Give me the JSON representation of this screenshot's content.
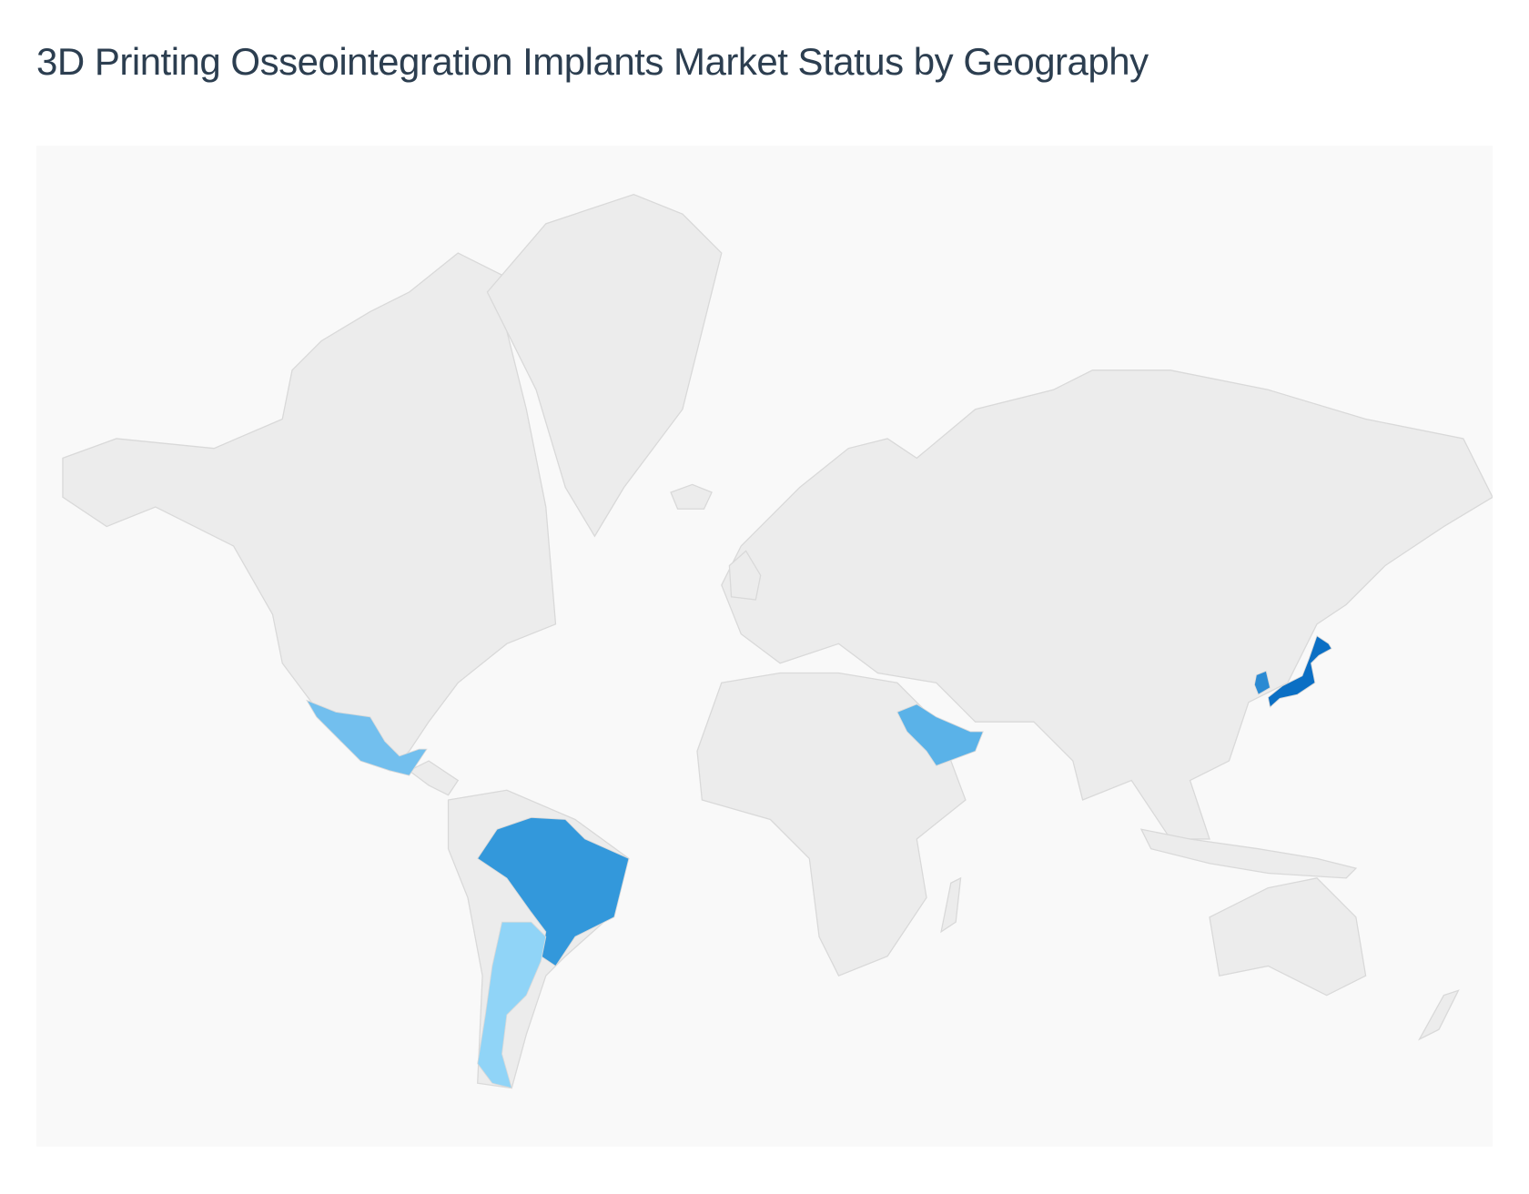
{
  "title": "3D Printing Osseointegration Implants Market Status by Geography",
  "chart_data": {
    "type": "choropleth",
    "title": "3D Printing Osseointegration Implants Market Status by Geography",
    "projection": "world mercator",
    "default_color": "#ececec",
    "background_color": "#f9f9f9",
    "highlighted_regions": [
      {
        "name": "Japan",
        "color": "#0b6fc4"
      },
      {
        "name": "South Korea",
        "color": "#2b8ad3"
      },
      {
        "name": "Brazil",
        "color": "#3398db"
      },
      {
        "name": "Saudi Arabia",
        "color": "#5ab2e8"
      },
      {
        "name": "Mexico",
        "color": "#72bfee"
      },
      {
        "name": "Argentina",
        "color": "#90d4f7"
      }
    ]
  }
}
